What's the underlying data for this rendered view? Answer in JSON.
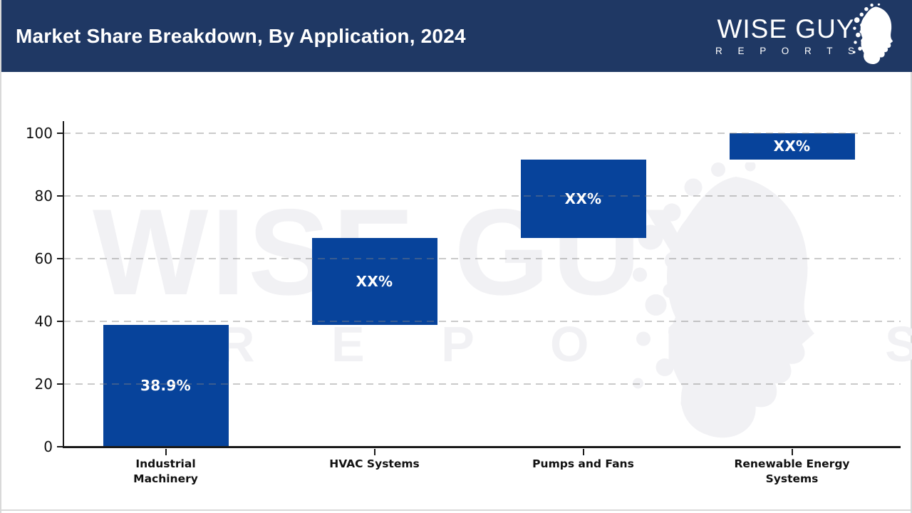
{
  "header": {
    "title": "Market Share Breakdown, By Application, 2024",
    "bg_color": "#1f3864",
    "logo": {
      "name": "WISE GUY",
      "sub": "R E P O R T S"
    }
  },
  "watermark": {
    "name": "WISE GUY",
    "sub": "R E P O R T S"
  },
  "chart_data": {
    "type": "bar",
    "subtype": "waterfall-floating-bars",
    "title": "Market Share Breakdown, By Application, 2024",
    "categories": [
      "Industrial\nMachinery",
      "HVAC Systems",
      "Pumps and Fans",
      "Renewable Energy\nSystems"
    ],
    "bars": [
      {
        "category": "Industrial Machinery",
        "start": 0,
        "end": 38.9,
        "label": "38.9%"
      },
      {
        "category": "HVAC Systems",
        "start": 38.9,
        "end": 66.7,
        "label": "XX%"
      },
      {
        "category": "Pumps and Fans",
        "start": 66.7,
        "end": 91.7,
        "label": "XX%"
      },
      {
        "category": "Renewable Energy Systems",
        "start": 91.7,
        "end": 100,
        "label": "XX%"
      }
    ],
    "yticks": [
      0,
      20,
      40,
      60,
      80,
      100
    ],
    "ylim": [
      0,
      100
    ],
    "xlabel": "",
    "ylabel": "",
    "grid": "horizontal-dashed",
    "legend": "none",
    "colors": {
      "bar": "#07439b",
      "bar_label": "#ffffff",
      "grid": "#c9c9c9",
      "axis": "#1a1a1a",
      "header_bg": "#1f3864",
      "watermark": "#f1f1f4"
    }
  }
}
